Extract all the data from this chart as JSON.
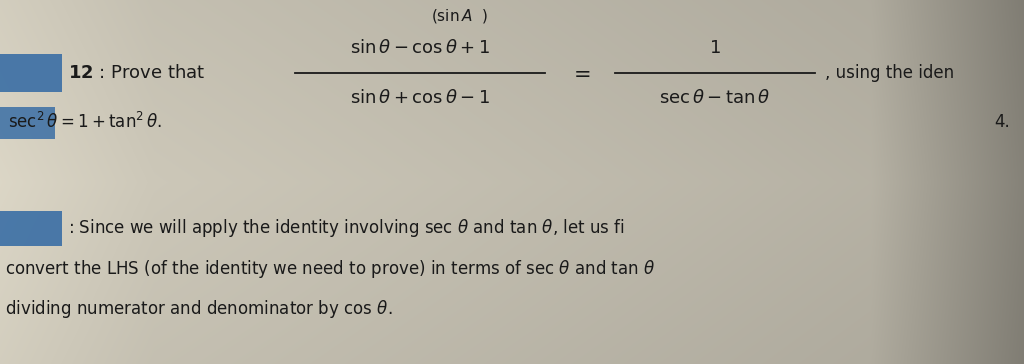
{
  "bg_color_top": "#c8c4b8",
  "bg_color_mid": "#d6d2c4",
  "bg_color_bot": "#b8b4a8",
  "text_color": "#1a1a1a",
  "blue_patch_color": "#3a6ea5",
  "fig_width": 10.24,
  "fig_height": 3.64,
  "top_text": "(sin A  )",
  "prove_label": "12",
  "prove_text": " : Prove that",
  "lhs_num": "$\\sin\\theta - \\cos\\theta + 1$",
  "lhs_den": "$\\sin\\theta + \\cos\\theta - 1$",
  "eq_sign": "$=$",
  "rhs_num": "$1$",
  "rhs_den": "$\\sec\\theta - \\tan\\theta$",
  "using_text": ", using the iden",
  "sec2_line": "$\\sec^2\\theta = 1 + \\tan^2\\theta.$",
  "right_num": "4.",
  "since_text": ": Since we will apply the identity involving sec $\\theta$ and tan $\\theta$, let us fi",
  "line4": "convert the LHS (of the identity we need to prove) in terms of sec $\\theta$ and tan $\\theta$",
  "line5": "dividing numerator and denominator by cos $\\theta$."
}
